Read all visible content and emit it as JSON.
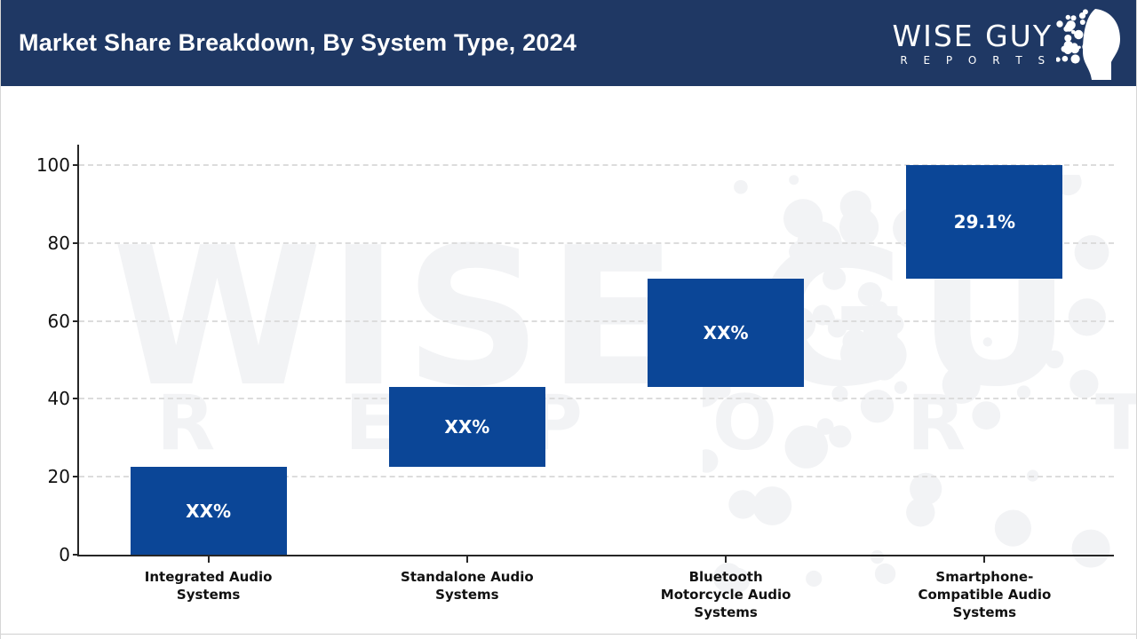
{
  "header": {
    "title": "Market Share Breakdown, By System Type, 2024",
    "logo": {
      "name": "WISE GUY",
      "sub": "R E P O R T S"
    }
  },
  "watermark": {
    "line1": "WISE GU",
    "line2": "R E P O R T"
  },
  "colors": {
    "header_bg": "#1f3864",
    "bar": "#0b4697",
    "axis": "#262626",
    "grid": "#dcdcdc",
    "bar_label": "#ffffff",
    "watermark": "#f2f3f5"
  },
  "chart_data": {
    "type": "bar",
    "subtype": "waterfall",
    "title": "Market Share Breakdown, By System Type, 2024",
    "categories": [
      "Integrated Audio\nSystems",
      "Standalone Audio\nSystems",
      "Bluetooth\nMotorcycle Audio\nSystems",
      "Smartphone-\nCompatible Audio\nSystems"
    ],
    "segments": [
      {
        "start": 0,
        "end": 22.5,
        "label": "XX%"
      },
      {
        "start": 22.5,
        "end": 43.0,
        "label": "XX%"
      },
      {
        "start": 43.0,
        "end": 70.9,
        "label": "XX%"
      },
      {
        "start": 70.9,
        "end": 100.0,
        "label": "29.1%"
      }
    ],
    "xlabel": "",
    "ylabel": "",
    "ylim": [
      0,
      105
    ],
    "yticks": [
      0,
      20,
      40,
      60,
      80,
      100
    ],
    "grid": "horizontal-dashed",
    "legend": "none"
  }
}
